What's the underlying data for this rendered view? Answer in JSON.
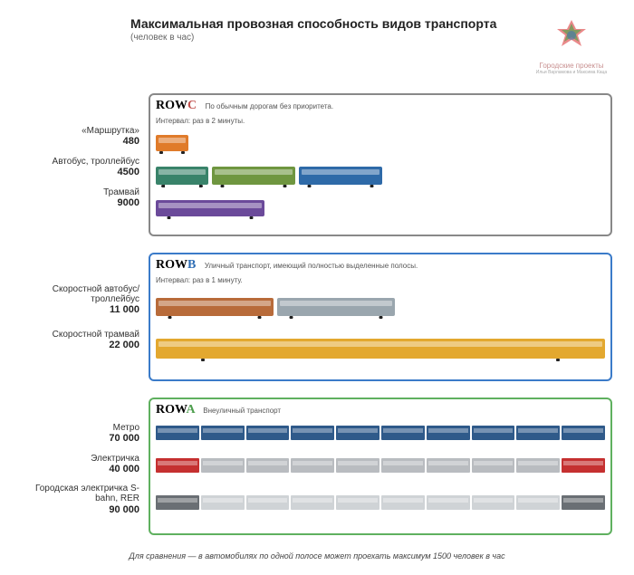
{
  "header": {
    "title": "Максимальная провозная способность видов транспорта",
    "subtitle": "(человек в час)"
  },
  "logo": {
    "name": "Городские проекты",
    "tagline": "Ильи Варламова и Максима Каца",
    "colors": [
      "#e15759",
      "#f28e2b",
      "#59a14f",
      "#4e79a7",
      "#af7aa1",
      "#edc948"
    ]
  },
  "groups": [
    {
      "id": "C",
      "tag_prefix": "ROW",
      "frame_color": "#888888",
      "letter_color": "#c0504d",
      "desc_line1": "По обычным дорогам без приоритета.",
      "desc_line2": "Интервал: раз в 2 минуты.",
      "items": [
        {
          "name": "«Маршрутка»",
          "value": "480",
          "vehicles": [
            {
              "w": "minibus",
              "color": "#e07b2a"
            }
          ]
        },
        {
          "name": "Автобус, троллейбус",
          "value": "4500",
          "vehicles": [
            {
              "w": "bus1",
              "color": "#39836a"
            },
            {
              "w": "bus2",
              "color": "#6f9640"
            },
            {
              "w": "bus2",
              "color": "#2e6aa8"
            }
          ]
        },
        {
          "name": "Трамвай",
          "value": "9000",
          "vehicles": [
            {
              "w": "tram1",
              "color": "#6b4a9a"
            }
          ]
        }
      ]
    },
    {
      "id": "B",
      "tag_prefix": "ROW",
      "frame_color": "#3b7bc9",
      "letter_color": "#2f6eb5",
      "desc_line1": "Уличный транспорт, имеющий полностью выделенные полосы.",
      "desc_line2": "Интервал: раз в 1 минуту.",
      "items": [
        {
          "name": "Скоростной автобус/троллейбус",
          "value": "11 000",
          "vehicles": [
            {
              "w": "brt",
              "color": "#b86b3a"
            },
            {
              "w": "brt",
              "color": "#9aa6ae"
            }
          ]
        },
        {
          "name": "Скоростной трамвай",
          "value": "22 000",
          "vehicles": [
            {
              "w": "lrt",
              "color": "#e3a82f"
            }
          ]
        }
      ]
    },
    {
      "id": "A",
      "tag_prefix": "ROW",
      "frame_color": "#5fb05f",
      "letter_color": "#4f9f4f",
      "desc_line1": "Внеуличный транспорт",
      "desc_line2": "",
      "items": [
        {
          "name": "Метро",
          "value": "70 000",
          "train": {
            "cars": 10,
            "color": "#2f5a8a",
            "accent": "#2f5a8a"
          }
        },
        {
          "name": "Электричка",
          "value": "40 000",
          "train": {
            "cars": 10,
            "color": "#b9bcc0",
            "accent": "#c53030"
          }
        },
        {
          "name": "Городская электричка S-bahn, RER",
          "value": "90 000",
          "train": {
            "cars": 10,
            "color": "#cfd3d6",
            "accent": "#6a6f74"
          }
        }
      ]
    }
  ],
  "footnote": "Для сравнения — в автомобилях по одной полосе может проехать максимум 1500 человек в час",
  "style": {
    "bg": "#ffffff",
    "title_fontsize": 14,
    "label_fontsize": 10,
    "value_fontsize": 11,
    "footnote_fontsize": 9
  }
}
